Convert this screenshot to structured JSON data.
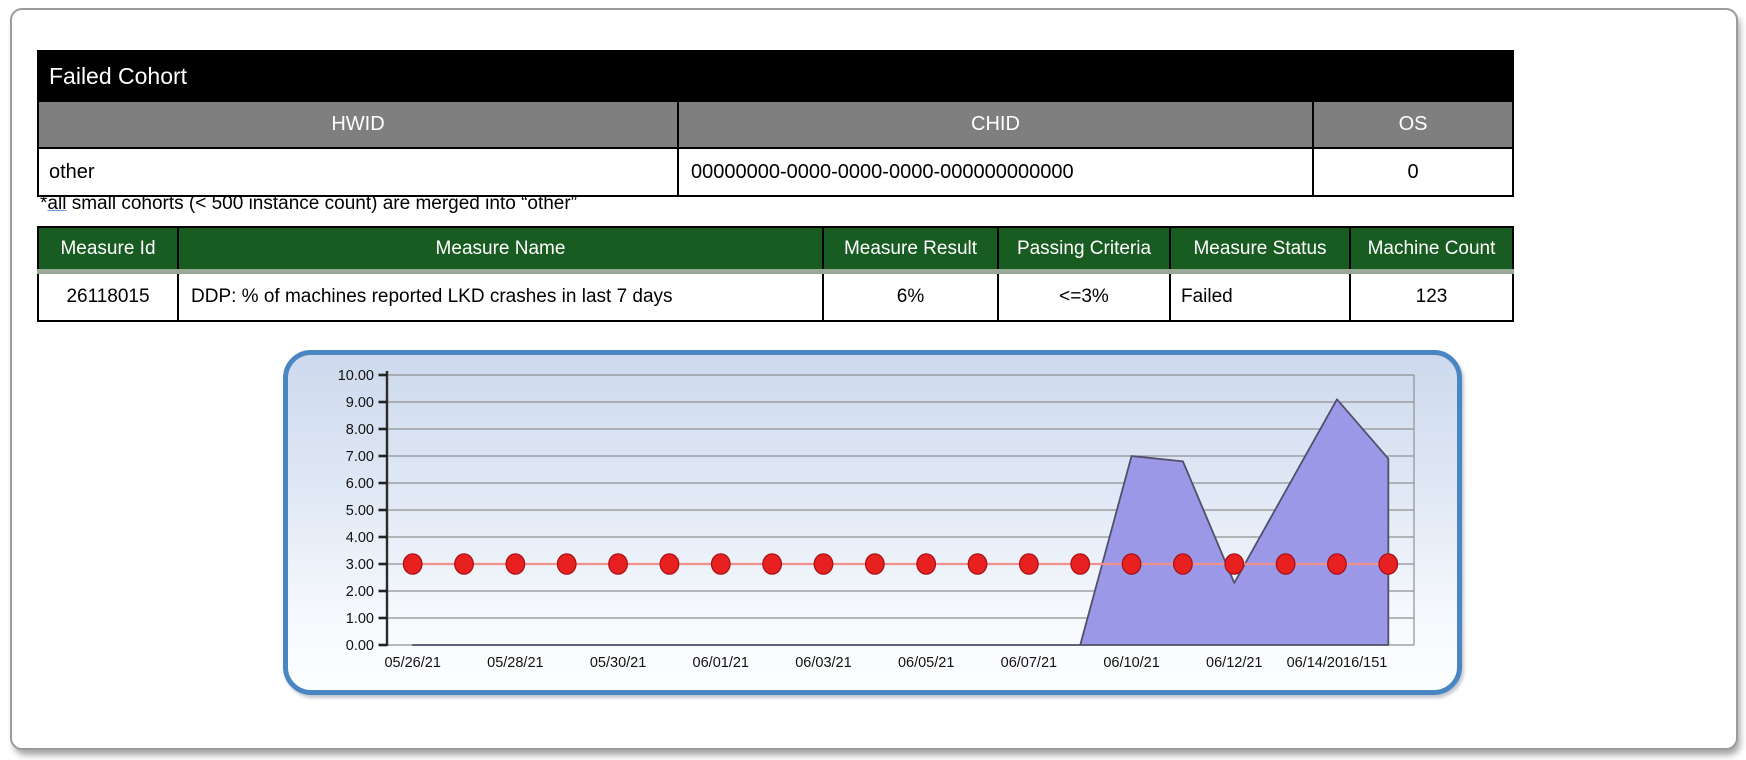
{
  "failed_cohort_table": {
    "title": "Failed Cohort",
    "columns": [
      "HWID",
      "CHID",
      "OS"
    ],
    "row": {
      "hwid": "other",
      "chid": "00000000-0000-0000-0000-000000000000",
      "os": "0"
    }
  },
  "note": {
    "star": "*",
    "underlined": "all",
    "rest": " small cohorts (< 500 instance count) are merged into “other”"
  },
  "measures_table": {
    "columns": [
      "Measure Id",
      "Measure Name",
      "Measure Result",
      "Passing Criteria",
      "Measure Status",
      "Machine Count"
    ],
    "row": {
      "measure_id": "26118015",
      "measure_name": "DDP: % of machines reported LKD crashes in last 7 days",
      "measure_result": "6%",
      "passing_criteria": "<=3%",
      "measure_status": "Failed",
      "machine_count": "123"
    }
  },
  "chart_data": {
    "type": "area",
    "title": "",
    "xlabel": "",
    "ylabel": "",
    "ylim": [
      0,
      10
    ],
    "grid": true,
    "legend": "none",
    "n_points": 20,
    "y_ticks": [
      "10.00",
      "9.00",
      "8.00",
      "7.00",
      "6.00",
      "5.00",
      "4.00",
      "3.00",
      "2.00",
      "1.00",
      "0.00"
    ],
    "x_labels": [
      "05/26/21",
      "05/28/21",
      "05/30/21",
      "06/01/21",
      "06/03/21",
      "06/05/21",
      "06/07/21",
      "06/10/21",
      "06/12/21",
      "06/14/2016/151"
    ],
    "label_indices": [
      0,
      2,
      4,
      6,
      8,
      10,
      12,
      14,
      16,
      18
    ],
    "series": [
      {
        "name": "Measure Result",
        "type": "area",
        "color": "#9b98e8",
        "values": [
          0,
          0,
          0,
          0,
          0,
          0,
          0,
          0,
          0,
          0,
          0,
          0,
          0,
          0,
          7.0,
          6.8,
          2.3,
          5.7,
          9.1,
          6.9
        ]
      },
      {
        "name": "Passing Criteria",
        "type": "line-markers",
        "color": "#e8201f",
        "values": [
          3,
          3,
          3,
          3,
          3,
          3,
          3,
          3,
          3,
          3,
          3,
          3,
          3,
          3,
          3,
          3,
          3,
          3,
          3,
          3
        ]
      }
    ]
  },
  "colors": {
    "black_header": "#000000",
    "gray_header": "#7f7f7f",
    "green_header": "#185c21",
    "area_fill": "#9b98e8",
    "marker_red": "#e8201f",
    "panel_border": "#4a86c2"
  }
}
